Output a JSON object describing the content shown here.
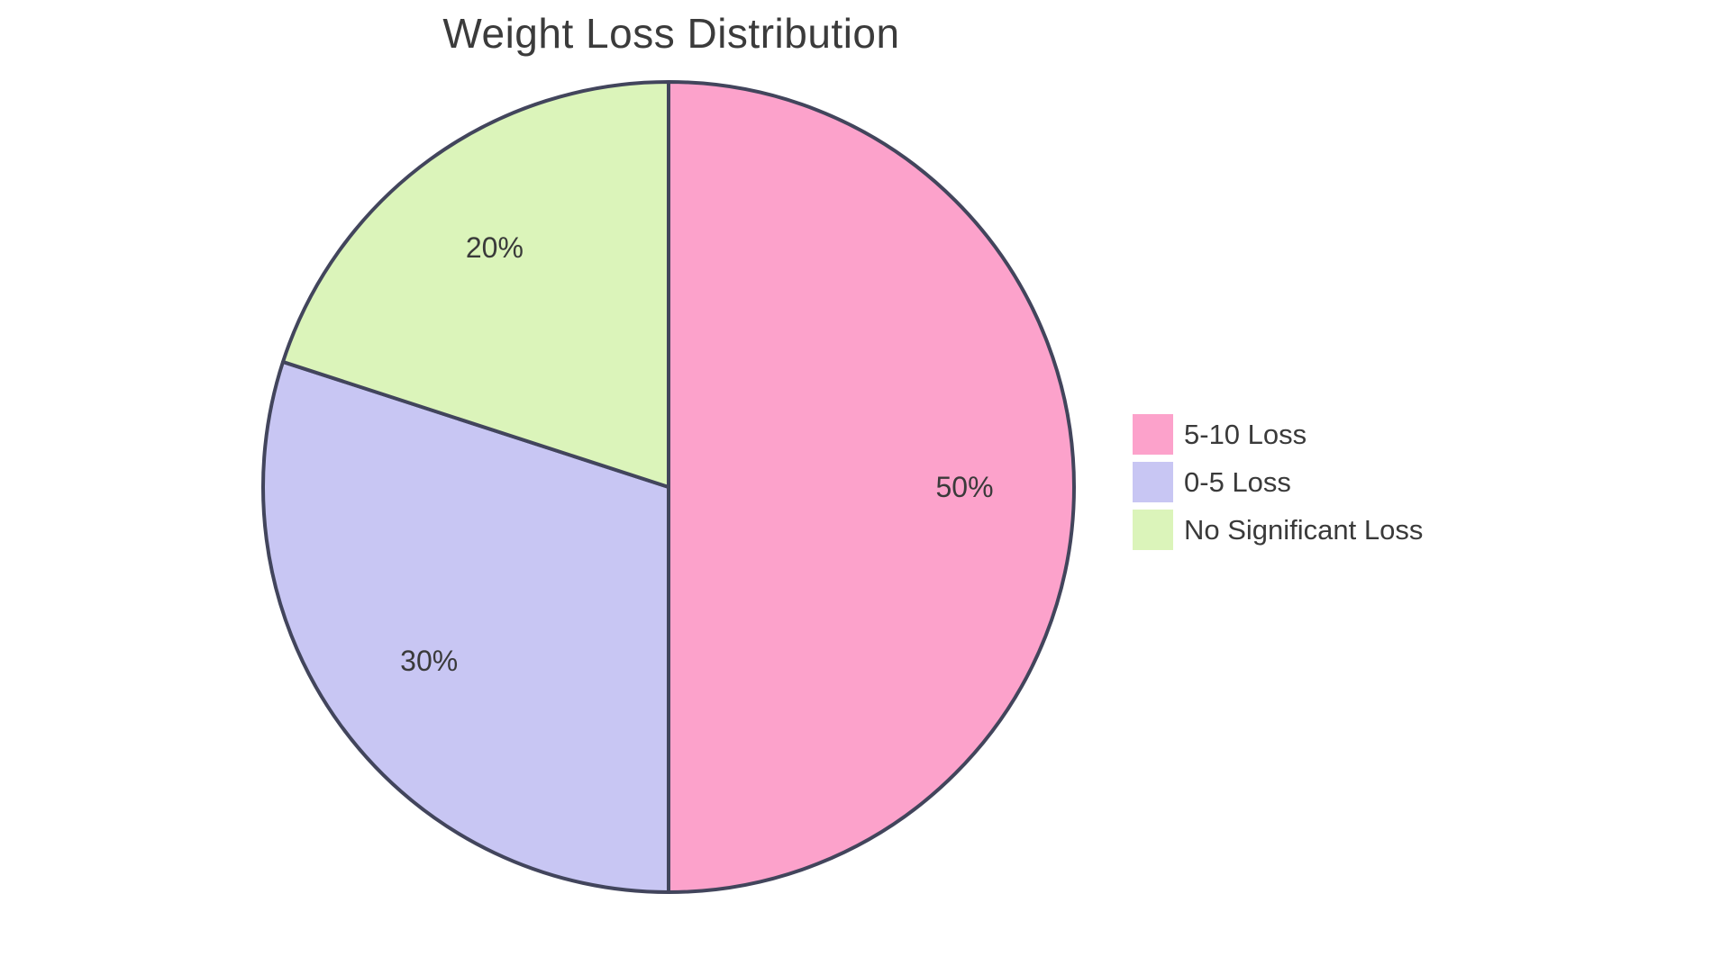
{
  "chart_data": {
    "type": "pie",
    "title": "Weight Loss Distribution",
    "slices": [
      {
        "label": "5-10 Loss",
        "value": 50,
        "pct_label": "50%",
        "color": "#FCA2CB"
      },
      {
        "label": "0-5 Loss",
        "value": 30,
        "pct_label": "30%",
        "color": "#C8C6F3"
      },
      {
        "label": "No Significant Loss",
        "value": 20,
        "pct_label": "20%",
        "color": "#DBF4BA"
      }
    ],
    "start_angle_deg": 0,
    "direction": "clockwise",
    "stroke_color": "#42455C",
    "label_color": "#3A3A3A",
    "title_color": "#3B3B3B",
    "background_color": "#FFFFFF",
    "legend_position": "right",
    "legend_entries": [
      "5-10 Loss",
      "0-5 Loss",
      "No Significant Loss"
    ]
  }
}
